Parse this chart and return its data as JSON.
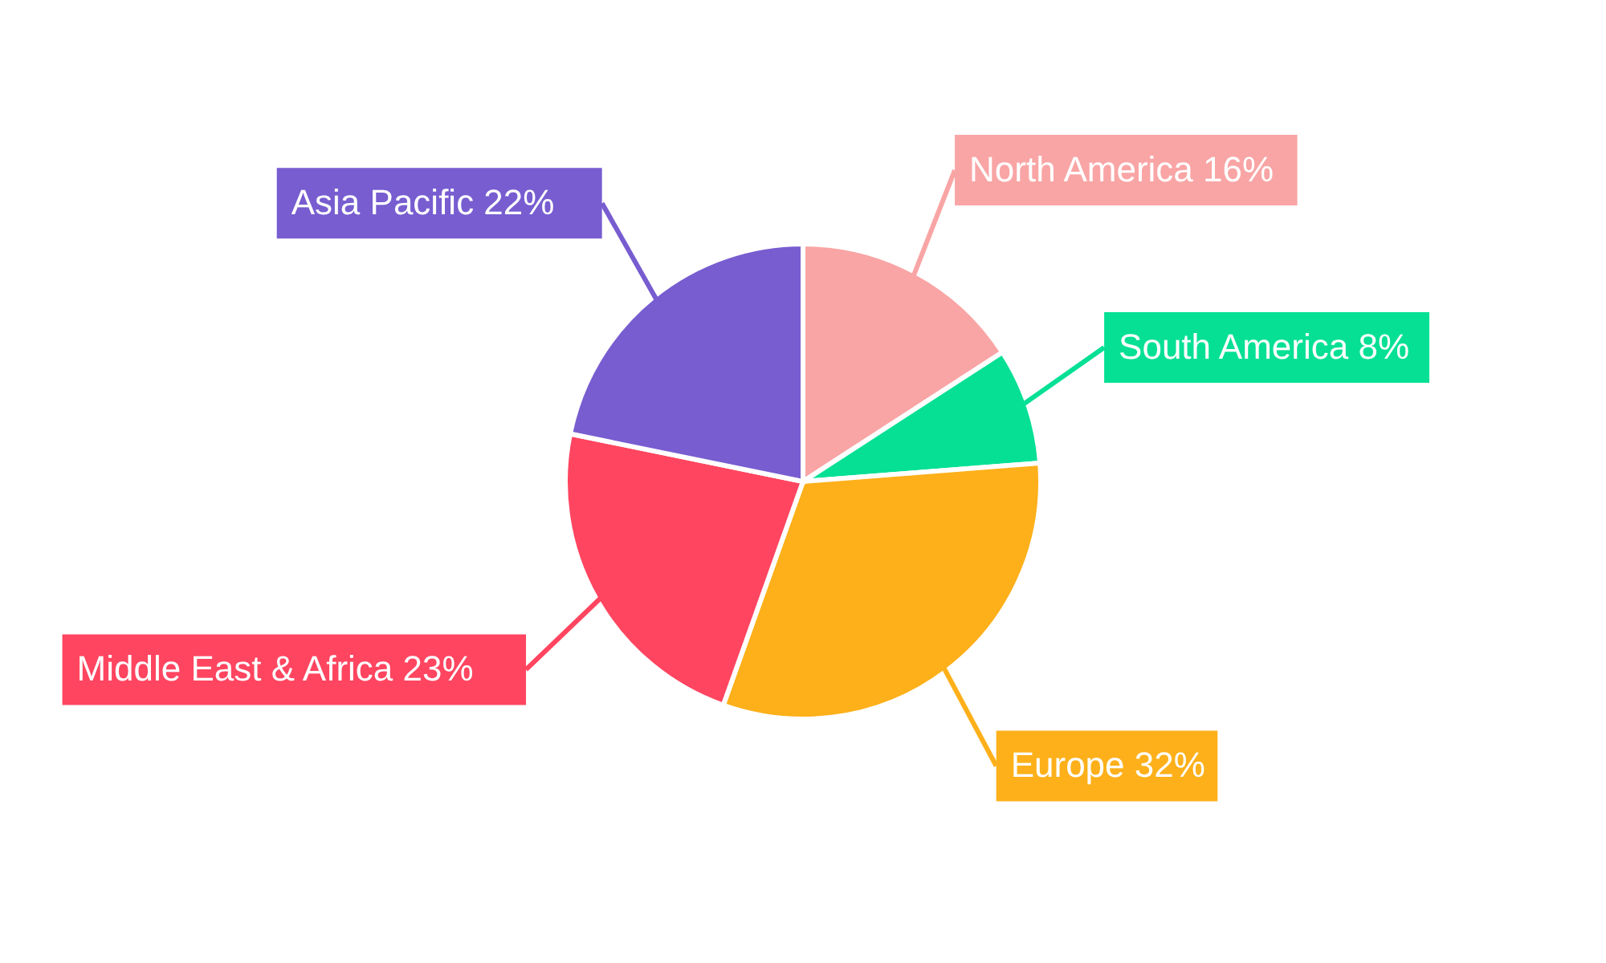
{
  "chart_data": {
    "type": "pie",
    "categories": [
      "North America",
      "South America",
      "Europe",
      "Middle East & Africa",
      "Asia Pacific"
    ],
    "values": [
      16,
      8,
      32,
      23,
      22
    ],
    "value_labels": [
      "16%",
      "8%",
      "32%",
      "23%",
      "22%"
    ],
    "colors": [
      "#f9a5a5",
      "#05e095",
      "#fdb01a",
      "#ff4560",
      "#775dd0"
    ]
  }
}
